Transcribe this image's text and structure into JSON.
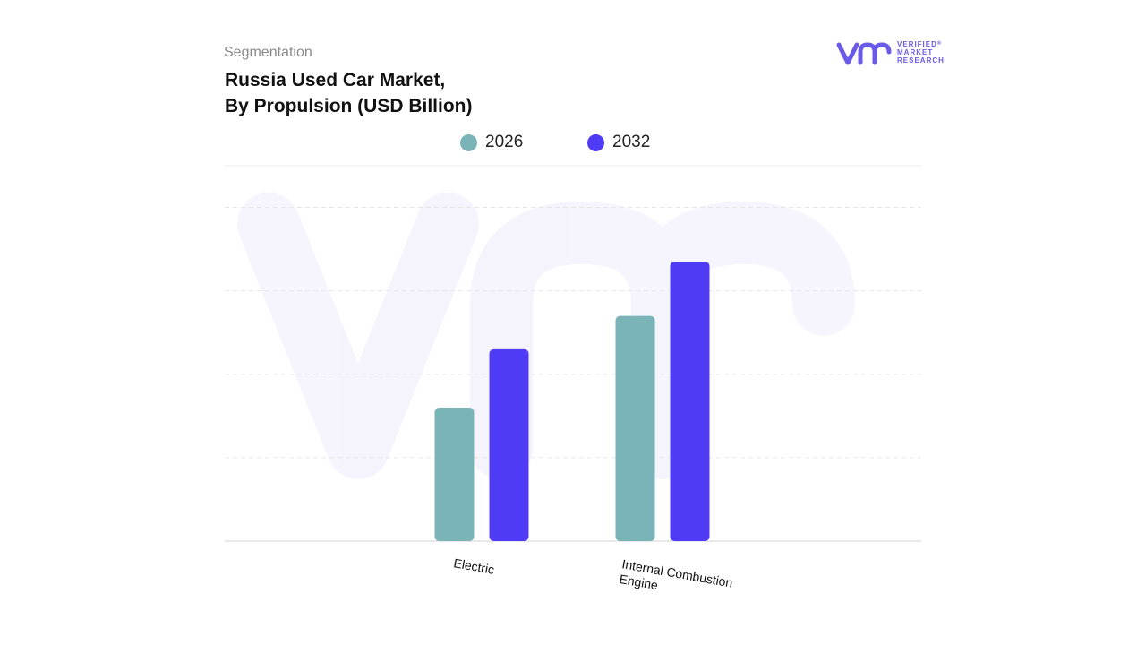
{
  "header": {
    "segmentation": "Segmentation",
    "title_line1": "Russia Used Car Market,",
    "title_line2": "By Propulsion (USD Billion)"
  },
  "logo": {
    "mark": "vmr",
    "line1": "VERIFIED",
    "line2": "MARKET",
    "line3": "RESEARCH",
    "registered": "®"
  },
  "colors": {
    "series_2026": "#7bb4b8",
    "series_2032": "#4f3bf5",
    "brand": "#6a5ae8",
    "gridline": "#e6e6e6"
  },
  "chart_data": {
    "type": "bar",
    "title": "Russia Used Car Market, By Propulsion (USD Billion)",
    "categories": [
      "Electric",
      "Internal Combustion Engine"
    ],
    "series": [
      {
        "name": "2026",
        "values": [
          1.6,
          2.7
        ]
      },
      {
        "name": "2032",
        "values": [
          2.3,
          3.35
        ]
      }
    ],
    "ylim": [
      0,
      4.5
    ],
    "grid": true,
    "legend": "top-center",
    "y_tick_labels_shown": false
  }
}
